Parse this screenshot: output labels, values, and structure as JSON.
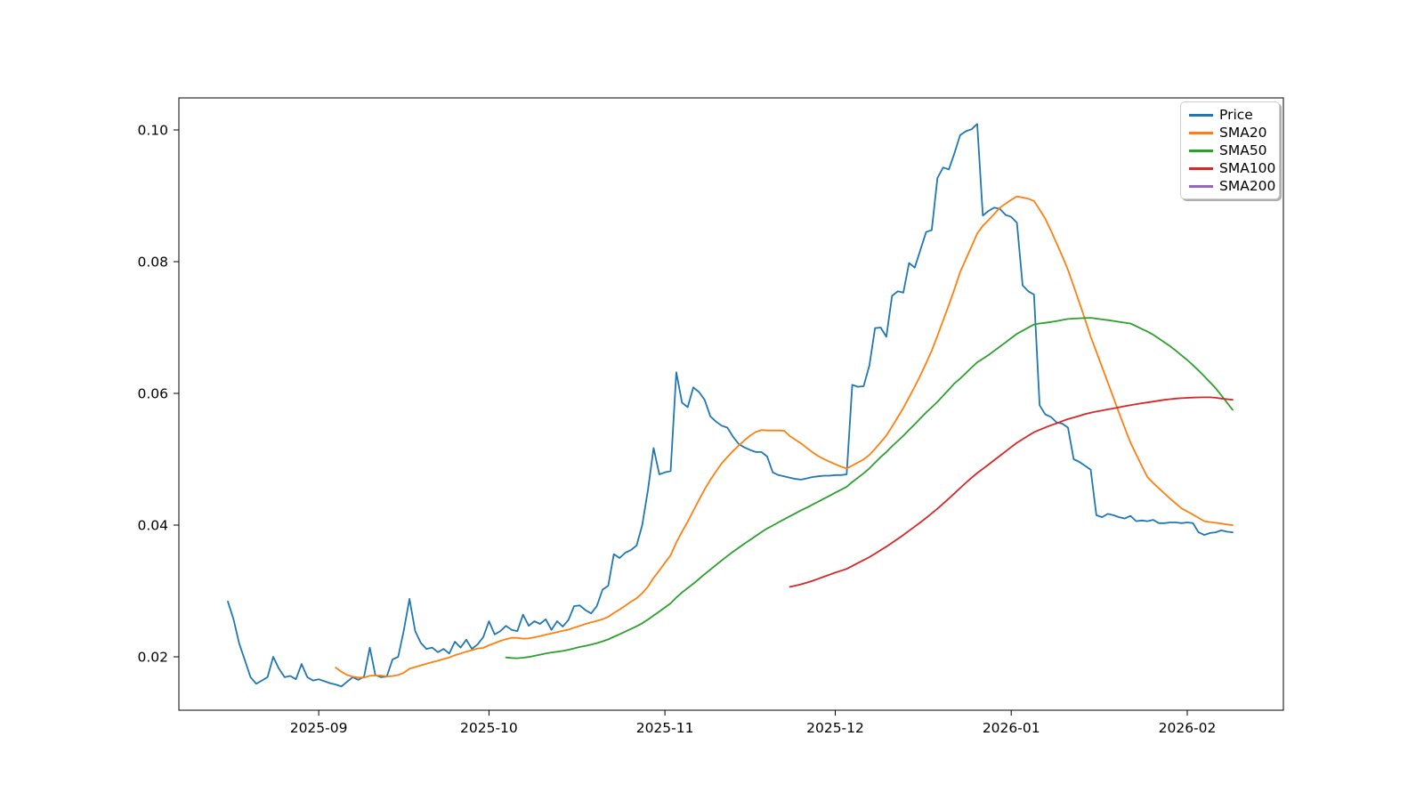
{
  "chart_data": {
    "type": "line",
    "title": "",
    "xlabel": "",
    "ylabel": "",
    "grid": false,
    "legend_position": "upper right",
    "background_color": "#ffffff",
    "axis_color": "#000000",
    "x_start_date": "2025-08-16",
    "x_frequency": "daily",
    "x_tick_labels": [
      "2025-09",
      "2025-10",
      "2025-11",
      "2025-12",
      "2026-01",
      "2026-02"
    ],
    "x_ticks": [
      {
        "label": "2025-09",
        "day_index": 16
      },
      {
        "label": "2025-10",
        "day_index": 46
      },
      {
        "label": "2025-11",
        "day_index": 77
      },
      {
        "label": "2025-12",
        "day_index": 107
      },
      {
        "label": "2026-01",
        "day_index": 138
      },
      {
        "label": "2026-02",
        "day_index": 169
      }
    ],
    "y_ticks": [
      0.02,
      0.04,
      0.06,
      0.08,
      0.1
    ],
    "y_tick_labels": [
      "0.02",
      "0.04",
      "0.06",
      "0.08",
      "0.10"
    ],
    "ylim": [
      0.0112,
      0.1052
    ],
    "series": [
      {
        "name": "Price",
        "color": "#1f77b4",
        "kind": "raw",
        "values": [
          0.0284,
          0.0257,
          0.022,
          0.0195,
          0.0169,
          0.0159,
          0.0164,
          0.0169,
          0.02,
          0.0182,
          0.0169,
          0.0171,
          0.0166,
          0.0189,
          0.0169,
          0.0164,
          0.0166,
          0.0163,
          0.016,
          0.0158,
          0.0155,
          0.0162,
          0.0169,
          0.0165,
          0.017,
          0.0214,
          0.0172,
          0.0169,
          0.017,
          0.0196,
          0.02,
          0.024,
          0.0288,
          0.0239,
          0.0221,
          0.0212,
          0.0214,
          0.0207,
          0.0212,
          0.0205,
          0.0223,
          0.0214,
          0.0226,
          0.0212,
          0.0219,
          0.023,
          0.0254,
          0.0234,
          0.0239,
          0.0247,
          0.0241,
          0.0239,
          0.0264,
          0.0247,
          0.0254,
          0.025,
          0.0257,
          0.0241,
          0.0254,
          0.0246,
          0.0256,
          0.0277,
          0.0278,
          0.0271,
          0.0266,
          0.0277,
          0.0302,
          0.0308,
          0.0356,
          0.035,
          0.0358,
          0.0362,
          0.0369,
          0.04,
          0.0453,
          0.0517,
          0.0477,
          0.048,
          0.0482,
          0.0632,
          0.0586,
          0.0579,
          0.0609,
          0.0602,
          0.059,
          0.0565,
          0.0557,
          0.0551,
          0.0548,
          0.0534,
          0.0523,
          0.0518,
          0.0514,
          0.0511,
          0.0511,
          0.0504,
          0.048,
          0.0476,
          0.0474,
          0.0472,
          0.047,
          0.0469,
          0.0471,
          0.0473,
          0.0474,
          0.0475,
          0.0475,
          0.0476,
          0.0476,
          0.0477,
          0.0613,
          0.061,
          0.0611,
          0.0642,
          0.0699,
          0.07,
          0.0686,
          0.0748,
          0.0755,
          0.0753,
          0.0798,
          0.0791,
          0.0818,
          0.0845,
          0.0848,
          0.0927,
          0.0943,
          0.094,
          0.0965,
          0.0992,
          0.0998,
          0.1001,
          0.1009,
          0.087,
          0.0877,
          0.0882,
          0.088,
          0.0871,
          0.0868,
          0.0859,
          0.0764,
          0.0755,
          0.075,
          0.0582,
          0.0568,
          0.0564,
          0.0556,
          0.0554,
          0.0548,
          0.05,
          0.0496,
          0.049,
          0.0484,
          0.0415,
          0.0412,
          0.0417,
          0.0415,
          0.0412,
          0.041,
          0.0414,
          0.0406,
          0.0407,
          0.0406,
          0.0408,
          0.0403,
          0.0403,
          0.0404,
          0.0404,
          0.0403,
          0.0404,
          0.0403,
          0.0389,
          0.0385,
          0.0388,
          0.0389,
          0.0392,
          0.039,
          0.0389
        ]
      },
      {
        "name": "SMA20",
        "color": "#ff7f0e",
        "kind": "sma",
        "window": 20,
        "note": "20-day simple moving average of Price; line begins 2025-09-04"
      },
      {
        "name": "SMA50",
        "color": "#2ca02c",
        "kind": "sma",
        "window": 50,
        "note": "50-day simple moving average of Price; line begins 2025-10-04"
      },
      {
        "name": "SMA100",
        "color": "#d62728",
        "kind": "sma",
        "window": 100,
        "note": "100-day simple moving average of Price; line begins 2025-11-23"
      },
      {
        "name": "SMA200",
        "color": "#9467bd",
        "kind": "sma",
        "window": 200,
        "note": "listed in legend but no visible line (fewer than 200 data points)"
      }
    ]
  }
}
